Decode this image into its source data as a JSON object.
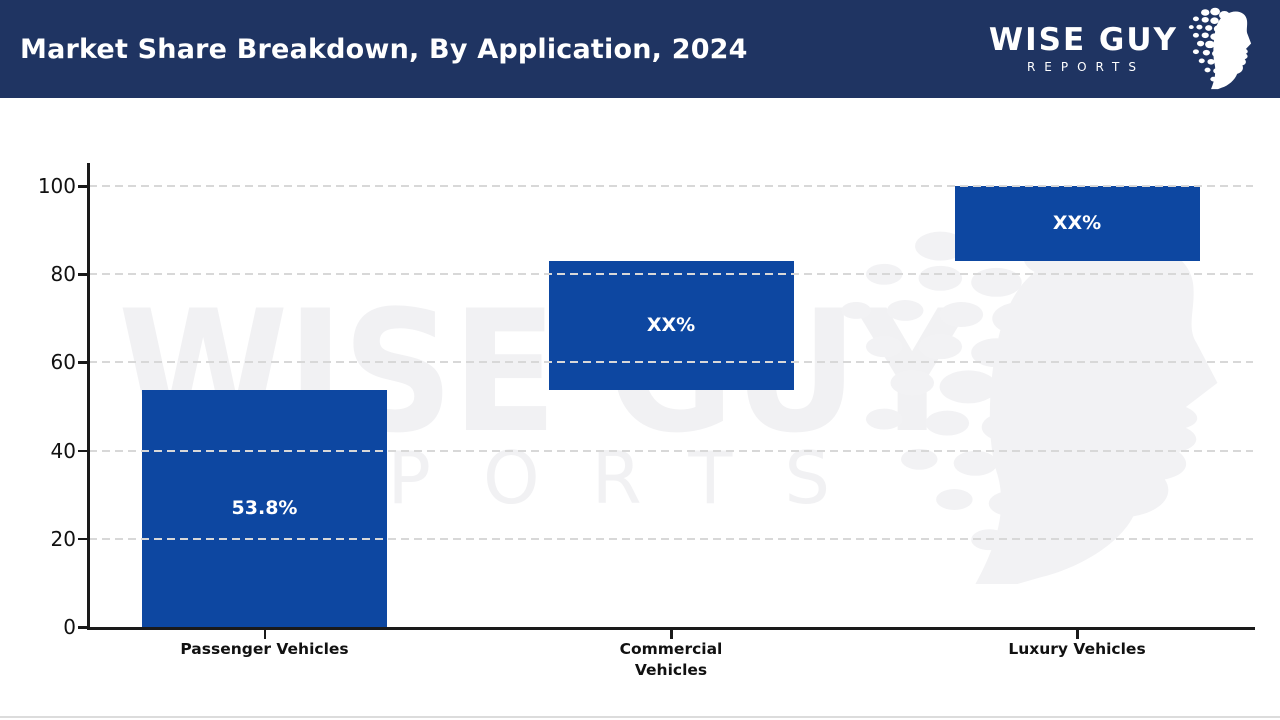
{
  "header": {
    "bg_color": "#1f3462",
    "title": "Market Share Breakdown, By Application, 2024",
    "logo": {
      "line1": "WISE GUY",
      "line2": "REPORTS"
    }
  },
  "watermark": {
    "line1": "WISE GUY",
    "line2": "REPORTS"
  },
  "chart_data": {
    "type": "bar",
    "variant": "floating-waterfall",
    "title": "Market Share Breakdown, By Application, 2024",
    "categories": [
      "Passenger Vehicles",
      "Commercial Vehicles",
      "Luxury Vehicles"
    ],
    "category_lines": [
      [
        "Passenger Vehicles"
      ],
      [
        "Commercial",
        "Vehicles"
      ],
      [
        "Luxury Vehicles"
      ]
    ],
    "segments": [
      {
        "category": "Passenger Vehicles",
        "start": 0,
        "end": 53.8,
        "label": "53.8%"
      },
      {
        "category": "Commercial Vehicles",
        "start": 53.8,
        "end": 83.0,
        "label": "XX%"
      },
      {
        "category": "Luxury Vehicles",
        "start": 83.0,
        "end": 100.0,
        "label": "XX%"
      }
    ],
    "ylim": [
      0,
      100
    ],
    "yticks": [
      0,
      20,
      40,
      60,
      80,
      100
    ],
    "grid": "horizontal dashed",
    "legend": "none",
    "bar_color": "#0d47a1",
    "bar_label_color": "#ffffff",
    "axis_color": "#1a1a1a",
    "gridline_color": "#d8d8d8"
  }
}
